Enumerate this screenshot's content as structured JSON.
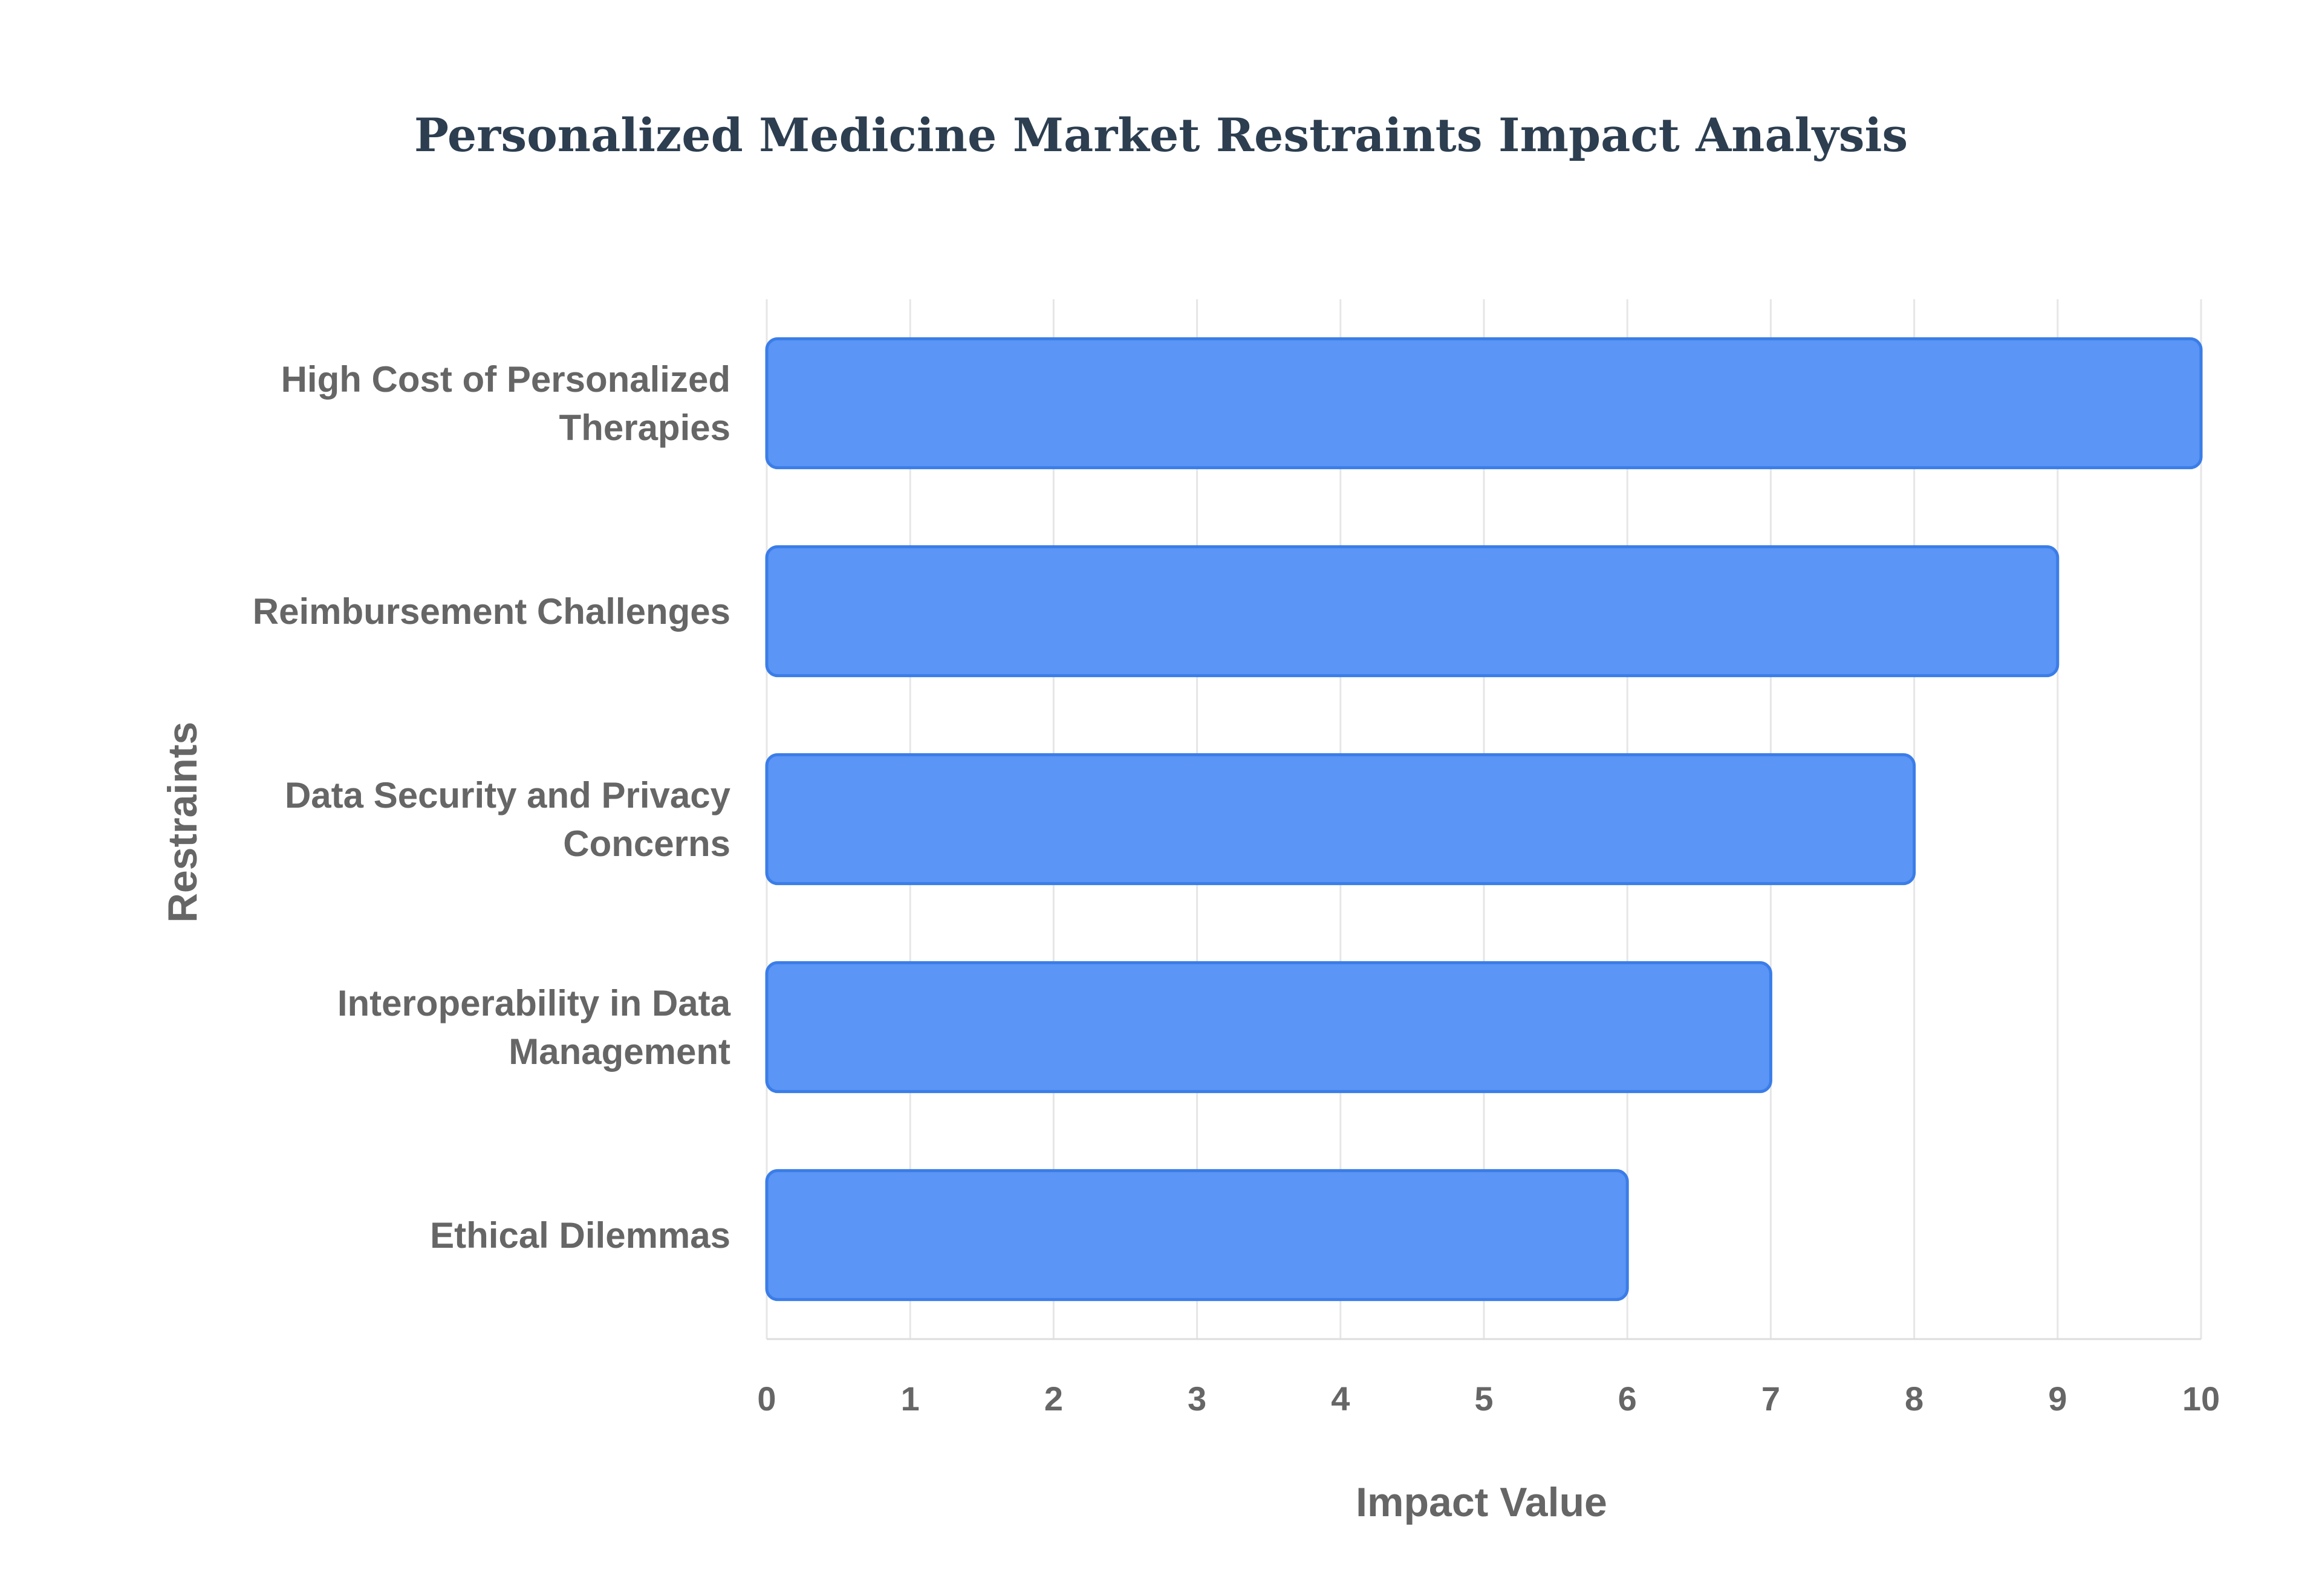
{
  "chart_data": {
    "type": "bar",
    "orientation": "horizontal",
    "title": "Personalized Medicine Market Restraints Impact Analysis",
    "xlabel": "Impact Value",
    "ylabel": "Restraints",
    "categories": [
      [
        "High Cost of Personalized",
        "Therapies"
      ],
      [
        "Reimbursement Challenges"
      ],
      [
        "Data Security and Privacy",
        "Concerns"
      ],
      [
        "Interoperability in Data",
        "Management"
      ],
      [
        "Ethical Dilemmas"
      ]
    ],
    "values": [
      10,
      9,
      8,
      7,
      6
    ],
    "xlim": [
      0,
      10
    ],
    "xticks": [
      "0",
      "1",
      "2",
      "3",
      "4",
      "5",
      "6",
      "7",
      "8",
      "9",
      "10"
    ],
    "grid": true,
    "legend": "none",
    "colors": {
      "bar_fill": "#5b95f5",
      "bar_stroke": "#3b7de8",
      "grid": "#e6e6e6",
      "axis_line": "#dddddd",
      "title": "#2c3e50",
      "label": "#666666"
    }
  }
}
